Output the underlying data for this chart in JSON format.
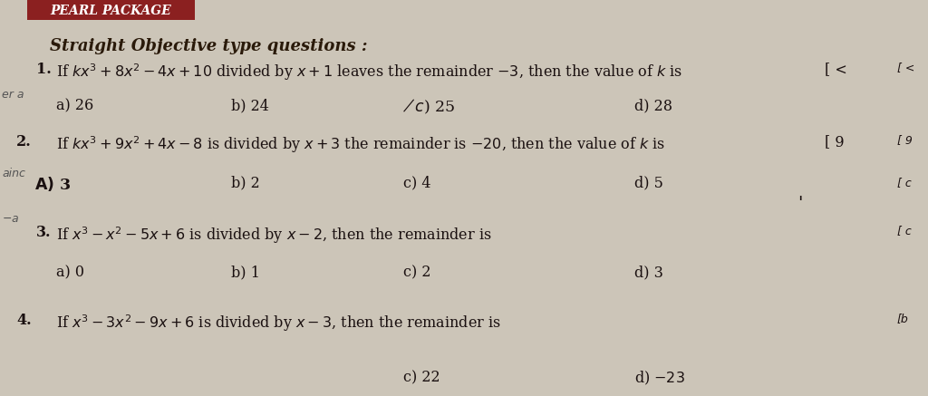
{
  "background_color": "#ccc5b8",
  "header_bg": "#8b2020",
  "header_text": "PEARL PACKAGE",
  "section_title": "Straight Objective type questions :",
  "q1_text": "If $kx^3+8x^2-4x+10$ divided by $x+1$ leaves the remainder $-3$, then the value of $k$ is",
  "q1_opts": [
    "a) 26",
    "b) 24",
    "c) 25",
    "d) 28"
  ],
  "q2_text": "If $kx^3+9x^2+4x-8$ is divided by $x+3$ the remainder is $-20$, then the value of $k$ is",
  "q2_opts": [
    "A) 3",
    "b) 2",
    "c) 4",
    "d) 5"
  ],
  "q3_text": "If $x^3-x^2-5x+6$ is divided by $x-2$, then the remainder is",
  "q3_opts": [
    "a) 0",
    "b) 1",
    "c) 2",
    "d) 3"
  ],
  "q4_text": "If $x^3-3x^2-9x+6$ is divided by  $x-3$, then the remainder is",
  "q4_partial_opts": [
    "d) $-23$"
  ],
  "right_hints": [
    "[  <",
    "[  9",
    "[  c",
    "[b"
  ],
  "left_labels": [
    "er a",
    "ainc",
    "$-a$"
  ],
  "text_color": "#1a1010",
  "dark_color": "#2a1a0a"
}
